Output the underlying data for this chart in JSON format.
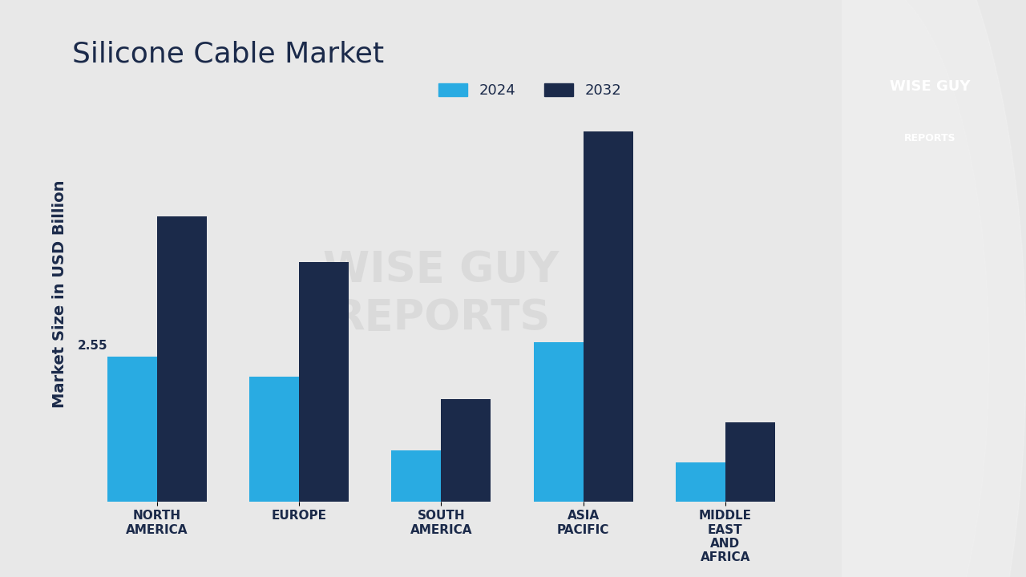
{
  "title": "Silicone Cable Market",
  "ylabel": "Market Size in USD Billion",
  "categories": [
    "NORTH\nAMERICA",
    "EUROPE",
    "SOUTH\nAMERICA",
    "ASIA\nPACIFIC",
    "MIDDLE\nEAST\nAND\nAFRICA"
  ],
  "values_2024": [
    2.55,
    2.2,
    0.9,
    2.8,
    0.7
  ],
  "values_2032": [
    5.0,
    4.2,
    1.8,
    6.5,
    1.4
  ],
  "color_2024": "#29ABE2",
  "color_2032": "#1B2A4A",
  "label_2024": "2024",
  "label_2032": "2032",
  "annotation_value": "2.55",
  "annotation_category": 0,
  "background_color": "#E8E8E8",
  "title_color": "#1B2A4A",
  "ylabel_color": "#1B2A4A",
  "bar_width": 0.35,
  "title_fontsize": 26,
  "ylabel_fontsize": 14,
  "tick_fontsize": 11,
  "legend_fontsize": 13,
  "annotation_fontsize": 11,
  "right_panel_color": "#1B2A4A",
  "watermark_text": "WISE GUY\nREPORTS",
  "wiseguy_line1": "WISE GUY",
  "wiseguy_line2": "REPORTS"
}
